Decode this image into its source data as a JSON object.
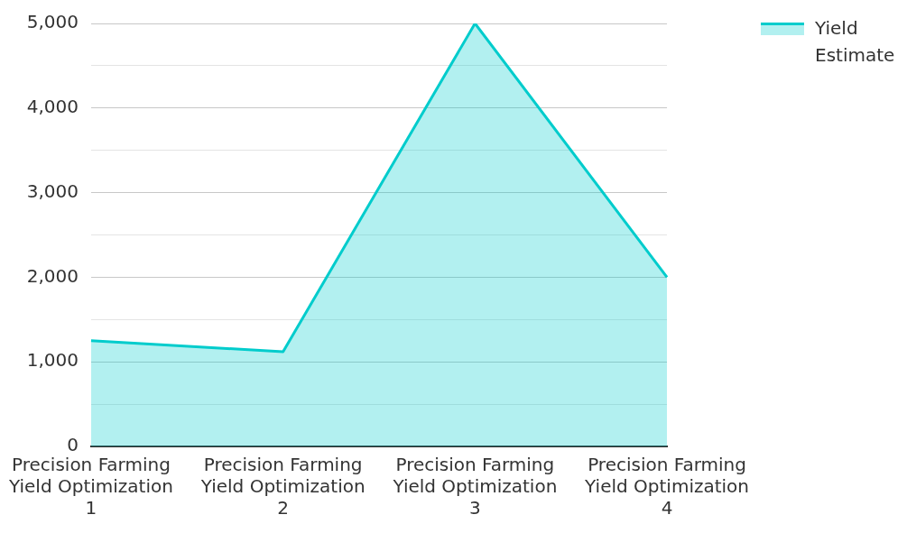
{
  "chart_data": {
    "type": "area",
    "categories": [
      "Precision Farming Yield Optimization 1",
      "Precision Farming Yield Optimization 2",
      "Precision Farming Yield Optimization 3",
      "Precision Farming Yield Optimization 4"
    ],
    "series": [
      {
        "name": "Yield Estimate",
        "color": "#00cccc",
        "values": [
          1250,
          1120,
          5000,
          2000
        ]
      }
    ],
    "ylim": [
      0,
      5000
    ],
    "yticks": [
      0,
      {
        "value": 500,
        "label": null
      },
      {
        "value": 1000,
        "label": "1,000"
      },
      {
        "value": 1500,
        "label": null
      },
      {
        "value": 2000,
        "label": "2,000"
      },
      {
        "value": 2500,
        "label": null
      },
      {
        "value": 3000,
        "label": "3,000"
      },
      {
        "value": 3500,
        "label": null
      },
      {
        "value": 4000,
        "label": "4,000"
      },
      {
        "value": 4500,
        "label": null
      },
      {
        "value": 5000,
        "label": "5,000"
      }
    ],
    "grid": "y",
    "legend": "top right"
  }
}
